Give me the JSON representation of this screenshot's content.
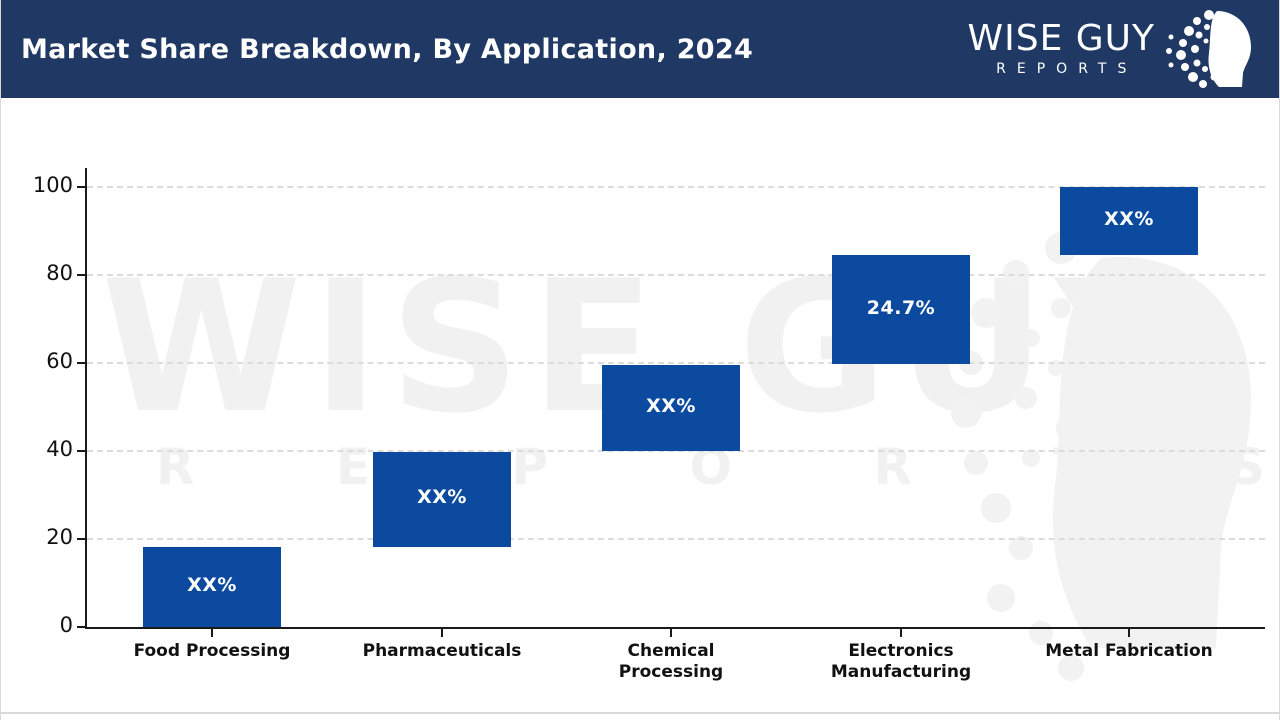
{
  "header": {
    "title": "Market Share Breakdown, By Application, 2024",
    "bg_color": "#203864",
    "logo": {
      "line1": "WISE GUY",
      "line2": "REPORTS"
    }
  },
  "watermark": {
    "line1": "WISE GUY",
    "line2": "R E P O R T S"
  },
  "chart_data": {
    "type": "bar",
    "subtype": "floating-waterfall",
    "title": "Market Share Breakdown, By Application, 2024",
    "xlabel": "",
    "ylabel": "",
    "categories": [
      "Food Processing",
      "Pharmaceuticals",
      "Chemical\nProcessing",
      "Electronics\nManufacturing",
      "Metal Fabrication"
    ],
    "segments": [
      {
        "category": "Food Processing",
        "start": 0,
        "end": 18.2,
        "label": "XX%"
      },
      {
        "category": "Pharmaceuticals",
        "start": 18.2,
        "end": 39.8,
        "label": "XX%"
      },
      {
        "category": "Chemical Processing",
        "start": 40.0,
        "end": 59.5,
        "label": "XX%"
      },
      {
        "category": "Electronics Manufacturing",
        "start": 59.8,
        "end": 84.5,
        "label": "24.7%"
      },
      {
        "category": "Metal Fabrication",
        "start": 84.5,
        "end": 100.0,
        "label": "XX%"
      }
    ],
    "y_ticks": [
      0,
      20,
      40,
      60,
      80,
      100
    ],
    "ylim": [
      0,
      104
    ],
    "grid": "horizontal-dashed",
    "legend": "none",
    "bar_color": "#0b4a9e",
    "gridline_color": "#dcdcdc",
    "axis_color": "#1a1a1a",
    "label_color": "#111111",
    "bar_value_text_color": "#ffffff"
  }
}
